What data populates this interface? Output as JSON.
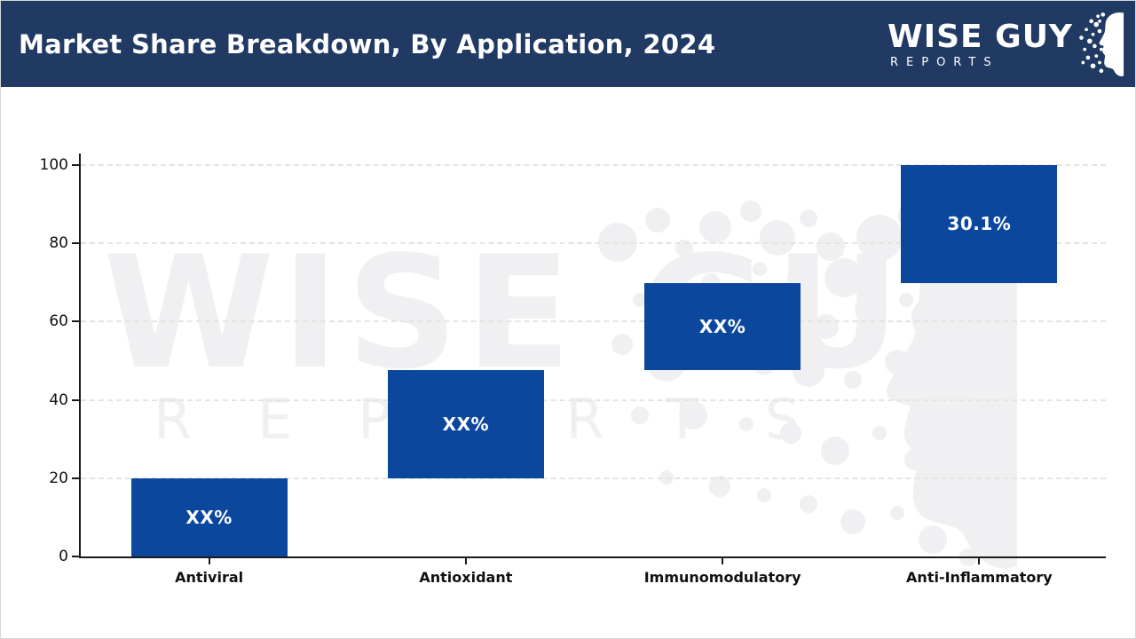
{
  "header": {
    "title": "Market Share Breakdown, By Application, 2024",
    "logo": {
      "line1": "WISE GUY",
      "line2": "REPORTS"
    }
  },
  "watermark": {
    "line1": "WISE GU",
    "line2": "REPORTS"
  },
  "chart_data": {
    "type": "bar",
    "subtype": "waterfall",
    "title": "Market Share Breakdown, By Application, 2024",
    "categories": [
      "Antiviral",
      "Antioxidant",
      "Immunomodulatory",
      "Anti-Inflammatory"
    ],
    "bars": [
      {
        "category": "Antiviral",
        "start": 0,
        "end": 20,
        "label": "XX%"
      },
      {
        "category": "Antioxidant",
        "start": 20,
        "end": 47.7,
        "label": "XX%"
      },
      {
        "category": "Immunomodulatory",
        "start": 47.7,
        "end": 69.9,
        "label": "XX%"
      },
      {
        "category": "Anti-Inflammatory",
        "start": 69.9,
        "end": 100,
        "label": "30.1%"
      }
    ],
    "ylim": [
      0,
      100
    ],
    "yticks": [
      0,
      20,
      40,
      60,
      80,
      100
    ],
    "xlabel": "",
    "ylabel": "",
    "legend": "none",
    "grid": "horizontal-dashed",
    "bar_color": "#0c479e"
  },
  "colors": {
    "header_bg": "#213a63",
    "bar": "#0c479e",
    "watermark": "#f0f0f2",
    "grid": "#e4e4e4",
    "axis": "#1a1a1a",
    "title_text": "#ffffff",
    "frame_border": "#d6d6d6"
  }
}
